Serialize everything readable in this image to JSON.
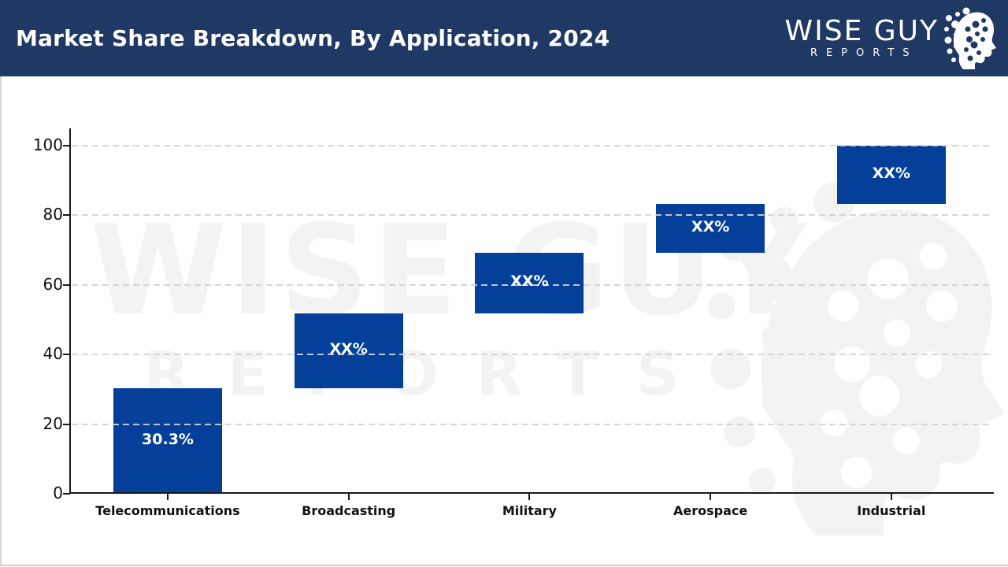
{
  "header": {
    "title": "Market Share Breakdown, By Application, 2024",
    "brand": {
      "line1": "WISE GUY",
      "line2": "REPORTS"
    }
  },
  "watermark": {
    "line1": "WISE GUY",
    "line2": "REPORTS"
  },
  "chart_data": {
    "type": "bar",
    "subtype": "waterfall (cumulative market-share breakdown)",
    "title": "Market Share Breakdown, By Application, 2024",
    "xlabel": "",
    "ylabel": "",
    "categories": [
      "Telecommunications",
      "Broadcasting",
      "Military",
      "Aerospace",
      "Industrial"
    ],
    "segments": [
      {
        "category": "Telecommunications",
        "start": 0,
        "end": 30.3,
        "value": 30.3,
        "label": "30.3%"
      },
      {
        "category": "Broadcasting",
        "start": 30.3,
        "end": 51.9,
        "value": 21.6,
        "label": "XX%"
      },
      {
        "category": "Military",
        "start": 51.9,
        "end": 69.3,
        "value": 17.4,
        "label": "XX%"
      },
      {
        "category": "Aerospace",
        "start": 69.3,
        "end": 83.3,
        "value": 14.0,
        "label": "XX%"
      },
      {
        "category": "Industrial",
        "start": 83.3,
        "end": 100,
        "value": 16.7,
        "label": "XX%"
      }
    ],
    "note": "Only Telecommunications value shown; other bar labels masked as XX%",
    "yticks": [
      0,
      20,
      40,
      60,
      80,
      100
    ],
    "ylim": [
      0,
      105
    ],
    "grid": "horizontal dashed, drawn over bars",
    "legend": "none",
    "colors": {
      "bar": "#04409a",
      "header_bg": "#1f3864",
      "grid": "#d9d9d9",
      "axis": "#1a1a1a",
      "watermark": "#f3f3f3",
      "label_text": "#ffffff"
    }
  }
}
